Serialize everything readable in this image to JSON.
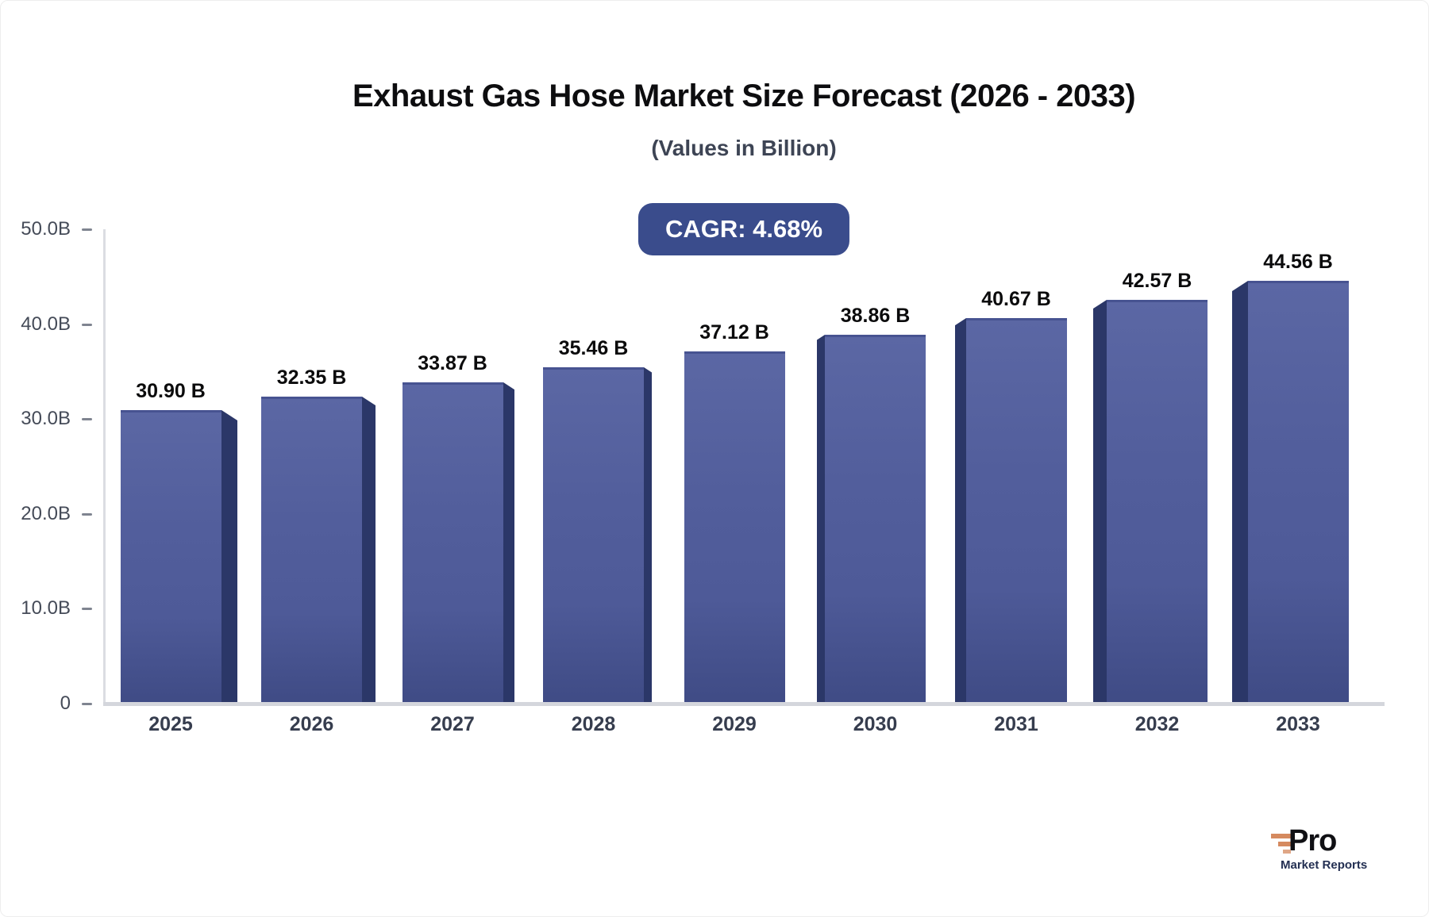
{
  "header": {
    "title": "Exhaust Gas Hose Market Size Forecast (2026 - 2033)",
    "subtitle": "(Values in Billion)",
    "cagr_label": "CAGR: 4.68%"
  },
  "chart_data": {
    "type": "bar",
    "title": "Exhaust Gas Hose Market Size Forecast (2026 - 2033)",
    "subtitle": "(Values in Billion)",
    "cagr": "4.68%",
    "categories": [
      "2025",
      "2026",
      "2027",
      "2028",
      "2029",
      "2030",
      "2031",
      "2032",
      "2033"
    ],
    "values": [
      30.9,
      32.35,
      33.87,
      35.46,
      37.12,
      38.86,
      40.67,
      42.57,
      44.56
    ],
    "value_labels": [
      "30.90 B",
      "32.35 B",
      "33.87 B",
      "35.46 B",
      "37.12 B",
      "38.86 B",
      "40.67 B",
      "42.57 B",
      "44.56 B"
    ],
    "ylim": [
      0,
      50
    ],
    "yticks": [
      {
        "label": "50.0B",
        "value": 50
      },
      {
        "label": "40.0B",
        "value": 40
      },
      {
        "label": "30.0B",
        "value": 30
      },
      {
        "label": "20.0B",
        "value": 20
      },
      {
        "label": "10.0B",
        "value": 10
      },
      {
        "label": "0",
        "value": 0
      }
    ],
    "grid": false,
    "legend": "none",
    "style": "3d-perspective-bars"
  },
  "colors": {
    "bar_front_top": "#5b67a4",
    "bar_front_bottom": "#3f4b85",
    "bar_side": "#2b3768",
    "bar_top_edge": "#475391",
    "badge_bg": "#3a4c8c",
    "badge_text": "#ffffff",
    "axis_line": "#d4d6dc",
    "tick_text": "#454b58",
    "year_text": "#363d4e",
    "value_text": "#0b0b0c",
    "logo_bars": "#d58a5f"
  },
  "logo": {
    "brand": "Pro",
    "caption": "Market Reports"
  }
}
